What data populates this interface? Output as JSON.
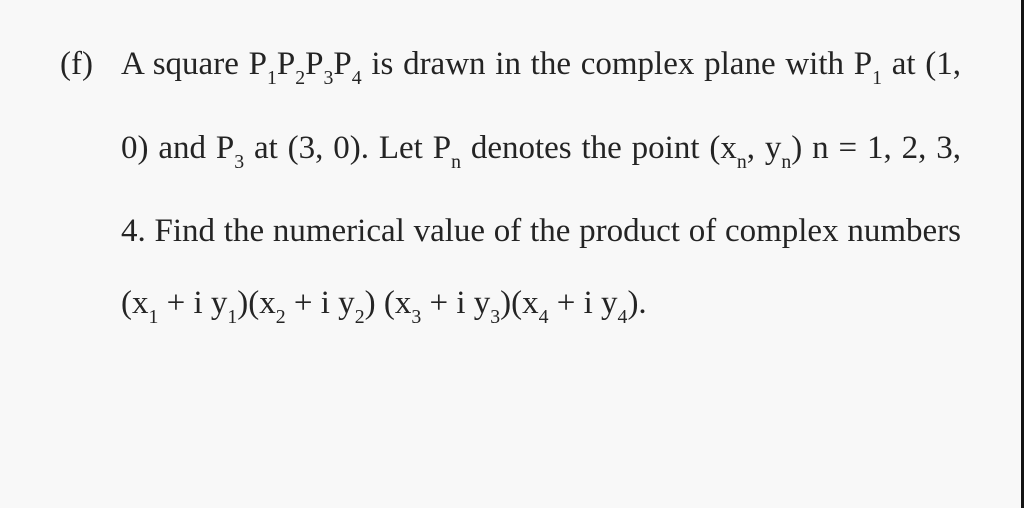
{
  "problem": {
    "label": "(f)",
    "line1_pre": "A square P",
    "p1p2p3p4": {
      "s1": "1",
      "s2": "2",
      "s3": "3",
      "s4": "4"
    },
    "line1_post": " is drawn in the complex",
    "line2_pre": "plane with P",
    "line2_s1": "1",
    "line2_at1": " at (1, 0) and P",
    "line2_s3": "3",
    "line2_post": " at (3, 0). Let P",
    "line2_sn": "n",
    "line3_pre": "denotes the point (x",
    "line3_sxn": "n",
    "line3_mid": ", y",
    "line3_syn": "n",
    "line3_post": ") n = 1, 2, 3, 4. Find",
    "line4": "the numerical value of the product of",
    "line5_pre": "complex numbers (x",
    "line5_s1": "1",
    "line5_a": " + i y",
    "line5_s1b": "1",
    "line5_b": ")(x",
    "line5_s2": "2",
    "line5_c": " + i y",
    "line5_s2b": "2",
    "line5_d": ")",
    "line6_pre": "(x",
    "line6_s3": "3",
    "line6_a": " + i y",
    "line6_s3b": "3",
    "line6_b": ")(x",
    "line6_s4": "4",
    "line6_c": " + i y",
    "line6_s4b": "4",
    "line6_d": ")."
  }
}
